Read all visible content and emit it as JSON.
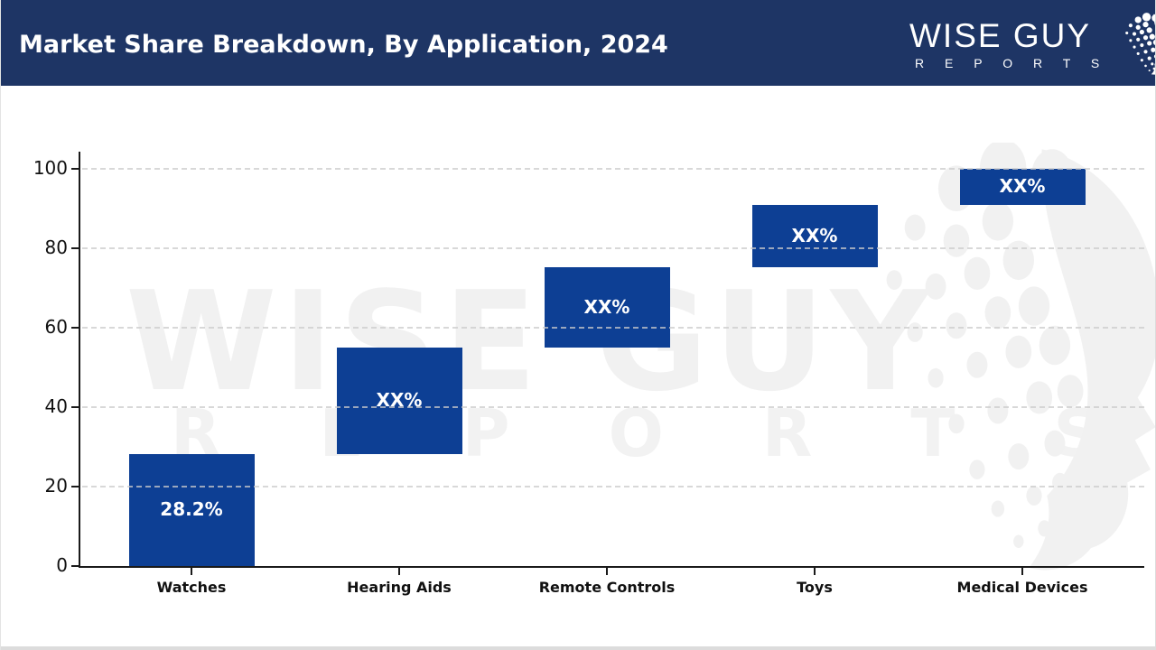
{
  "header": {
    "title": "Market Share Breakdown, By Application, 2024",
    "bg_color": "#1e3565",
    "title_color": "#ffffff",
    "logo": {
      "line1": "WISE GUY",
      "line2": "R E P O R T S",
      "head_icon": "dotted-head-profile-icon",
      "color": "#ffffff"
    }
  },
  "watermark": {
    "line1": "WISE GUY",
    "line2": "R E P O R T S",
    "head_icon": "dotted-head-profile-icon",
    "color": "#f1f1f1"
  },
  "chart_data": {
    "type": "bar",
    "subtype": "floating-waterfall",
    "title": "Market Share Breakdown, By Application, 2024",
    "categories": [
      "Watches",
      "Hearing Aids",
      "Remote Controls",
      "Toys",
      "Medical Devices"
    ],
    "bars": [
      {
        "category": "Watches",
        "start": 0,
        "end": 28.2,
        "label": "28.2%"
      },
      {
        "category": "Hearing Aids",
        "start": 28.2,
        "end": 55.0,
        "label": "XX%"
      },
      {
        "category": "Remote Controls",
        "start": 55.0,
        "end": 75.2,
        "label": "XX%"
      },
      {
        "category": "Toys",
        "start": 75.2,
        "end": 90.9,
        "label": "XX%"
      },
      {
        "category": "Medical Devices",
        "start": 90.9,
        "end": 100,
        "label": "XX%"
      }
    ],
    "xlabel": "",
    "ylabel": "",
    "ylim": [
      0,
      100
    ],
    "yticks": [
      0,
      20,
      40,
      60,
      80,
      100
    ],
    "grid": "horizontal dashed, drawn over bars",
    "legend": null,
    "bar_color": "#0d3f94",
    "bar_label_color": "#ffffff",
    "grid_color": "#cbcbcb",
    "axis_color": "#1a1a1a"
  }
}
